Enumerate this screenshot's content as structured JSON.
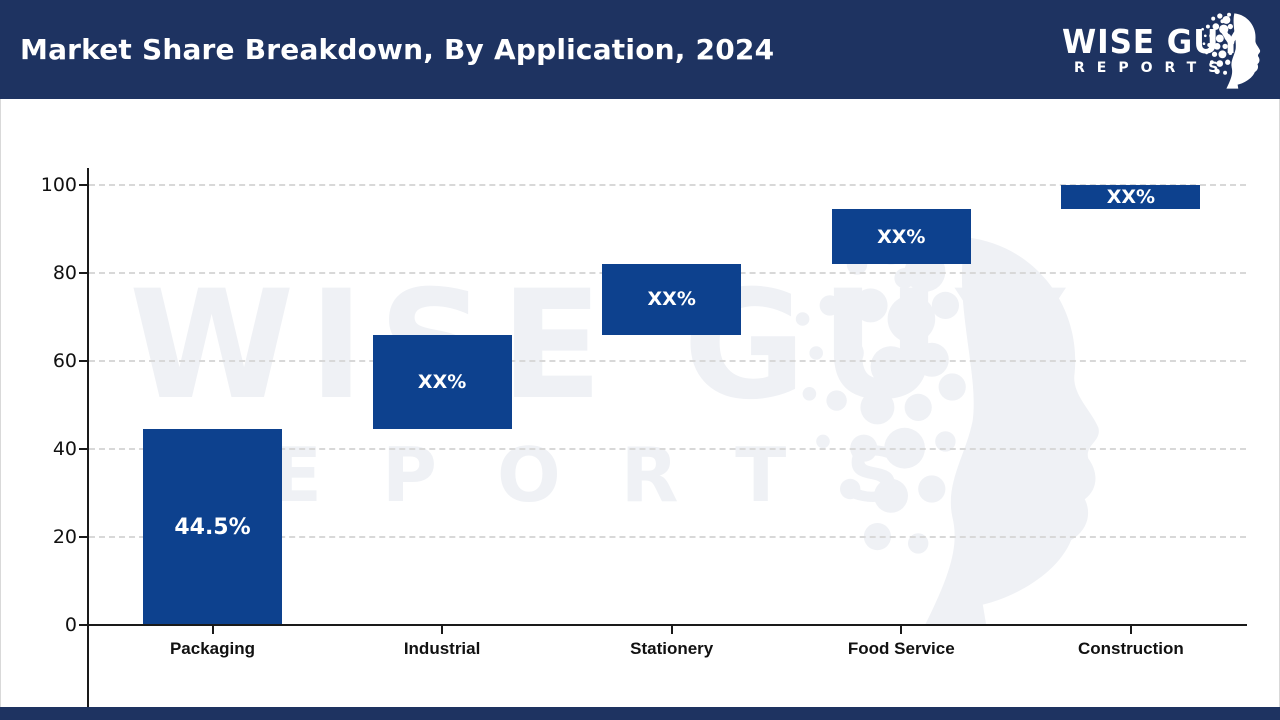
{
  "header": {
    "title": "Market Share Breakdown, By Application, 2024"
  },
  "logo": {
    "line1": "WISE GUY",
    "line2": "REPORTS",
    "head_icon": "dotted-head-profile-icon"
  },
  "watermark": {
    "line1": "WISE GUY",
    "line2": "REPORTS",
    "head_icon": "dotted-head-profile-icon"
  },
  "colors": {
    "header_bg": "#1e3361",
    "footer_bg": "#1e3361",
    "bar": "#0d418e",
    "grid": "#d8d8d8",
    "axis": "#1a1a1a",
    "watermark": "#eff1f5",
    "bar_label_text": "#ffffff",
    "title_text": "#ffffff"
  },
  "chart_data": {
    "type": "bar",
    "subtype": "waterfall",
    "title": "Market Share Breakdown, By Application, 2024",
    "categories": [
      "Packaging",
      "Industrial",
      "Stationery",
      "Food Service",
      "Construction"
    ],
    "segments": [
      {
        "category": "Packaging",
        "start": 0,
        "end": 44.5,
        "value": 44.5,
        "label": "44.5%"
      },
      {
        "category": "Industrial",
        "start": 44.5,
        "end": 66,
        "value": 21.5,
        "label": "XX%"
      },
      {
        "category": "Stationery",
        "start": 66,
        "end": 82,
        "value": 16,
        "label": "XX%"
      },
      {
        "category": "Food Service",
        "start": 82,
        "end": 94.5,
        "value": 12.5,
        "label": "XX%"
      },
      {
        "category": "Construction",
        "start": 94.5,
        "end": 100,
        "value": 5.5,
        "label": "XX%"
      }
    ],
    "yticks": [
      0,
      20,
      40,
      60,
      80,
      100
    ],
    "ylim": [
      0,
      103
    ],
    "xlabel": "",
    "ylabel": "",
    "grid": "dashed-horizontal",
    "legend": "none"
  }
}
